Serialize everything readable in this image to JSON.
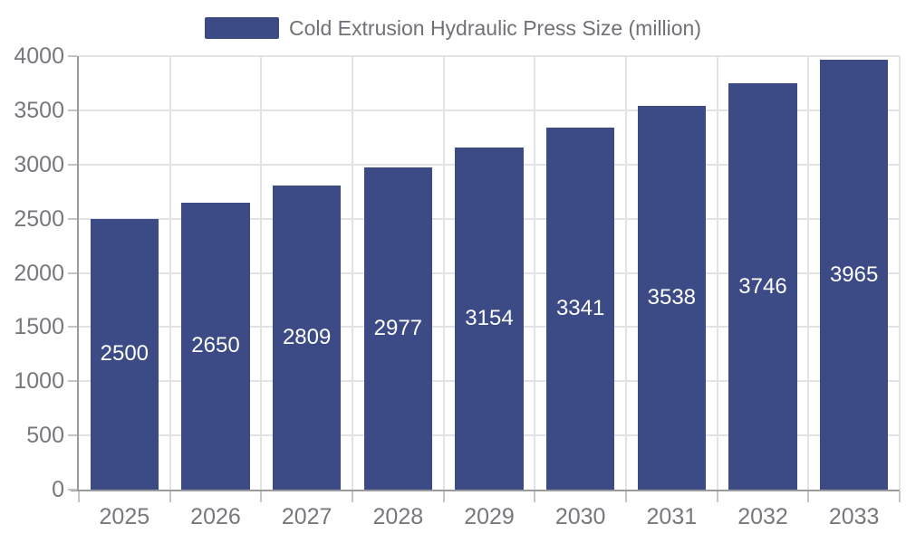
{
  "chart_data": {
    "type": "bar",
    "title": "Cold Extrusion Hydraulic Press Size (million)",
    "legend": [
      "Cold Extrusion Hydraulic Press Size (million)"
    ],
    "legend_position": "top-center",
    "categories": [
      "2025",
      "2026",
      "2027",
      "2028",
      "2029",
      "2030",
      "2031",
      "2032",
      "2033"
    ],
    "series": [
      {
        "name": "Cold Extrusion Hydraulic Press Size (million)",
        "values": [
          2500,
          2650,
          2809,
          2977,
          3154,
          3341,
          3538,
          3746,
          3965
        ]
      }
    ],
    "bar_labels_visible": true,
    "bar_label_position": "inside-center",
    "xlabel": "",
    "ylabel": "",
    "ylim": [
      0,
      4000
    ],
    "yticks": [
      0,
      500,
      1000,
      1500,
      2000,
      2500,
      3000,
      3500,
      4000
    ],
    "grid": true,
    "colors": {
      "bar": "#3C4B85",
      "bar_label": "#FFFFFF",
      "grid": "#E3E3E3",
      "axis_line": "#9B9B9B",
      "tick": "#C4C4C4",
      "axis_text": "#76787D",
      "legend_text": "#707176",
      "background": "#FFFFFF"
    }
  }
}
